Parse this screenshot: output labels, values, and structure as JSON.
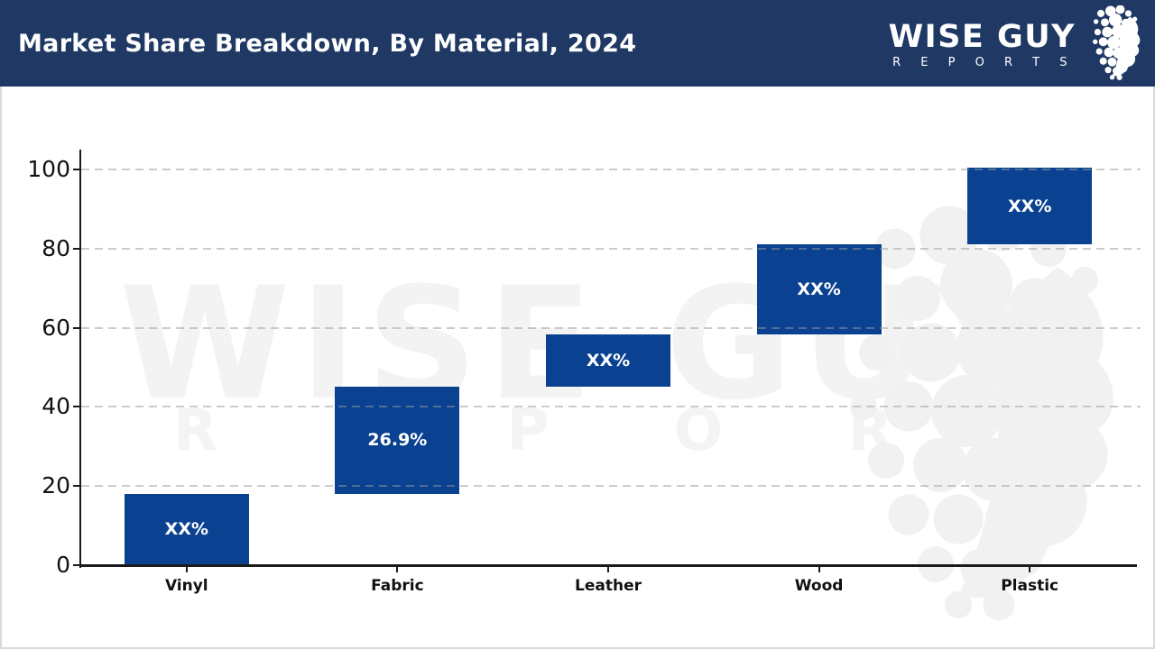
{
  "header": {
    "title": "Market Share Breakdown, By Material, 2024",
    "bg_color": "#1f3864",
    "logo": {
      "line1": "WISE GUY",
      "line2": "R E P O R T S"
    }
  },
  "watermark": {
    "line1": "WISE GUY",
    "line2": "R E P O R T S"
  },
  "chart_data": {
    "type": "bar",
    "variant": "waterfall",
    "title": "Market Share Breakdown, By Material, 2024",
    "categories": [
      "Vinyl",
      "Fabric",
      "Leather",
      "Wood",
      "Plastic"
    ],
    "segments": [
      {
        "category": "Vinyl",
        "start": 0,
        "end": 18.1,
        "label": "XX%"
      },
      {
        "category": "Fabric",
        "start": 18.1,
        "end": 45.0,
        "label": "26.9%"
      },
      {
        "category": "Leather",
        "start": 45.0,
        "end": 58.4,
        "label": "XX%"
      },
      {
        "category": "Wood",
        "start": 58.4,
        "end": 81.0,
        "label": "XX%"
      },
      {
        "category": "Plastic",
        "start": 81.0,
        "end": 100.4,
        "label": "XX%"
      }
    ],
    "xlabel": "",
    "ylabel": "",
    "yticks": [
      "0",
      "20",
      "40",
      "60",
      "80",
      "100"
    ],
    "ylim": [
      0,
      105
    ],
    "grid": "horizontal-dashed",
    "legend": "none",
    "bar_color": "#0a4191",
    "bar_label_color": "#ffffff",
    "axis_color": "#1a1a1a",
    "grid_color": "#9a9a9a",
    "watermark_color": "#f3f3f3"
  }
}
